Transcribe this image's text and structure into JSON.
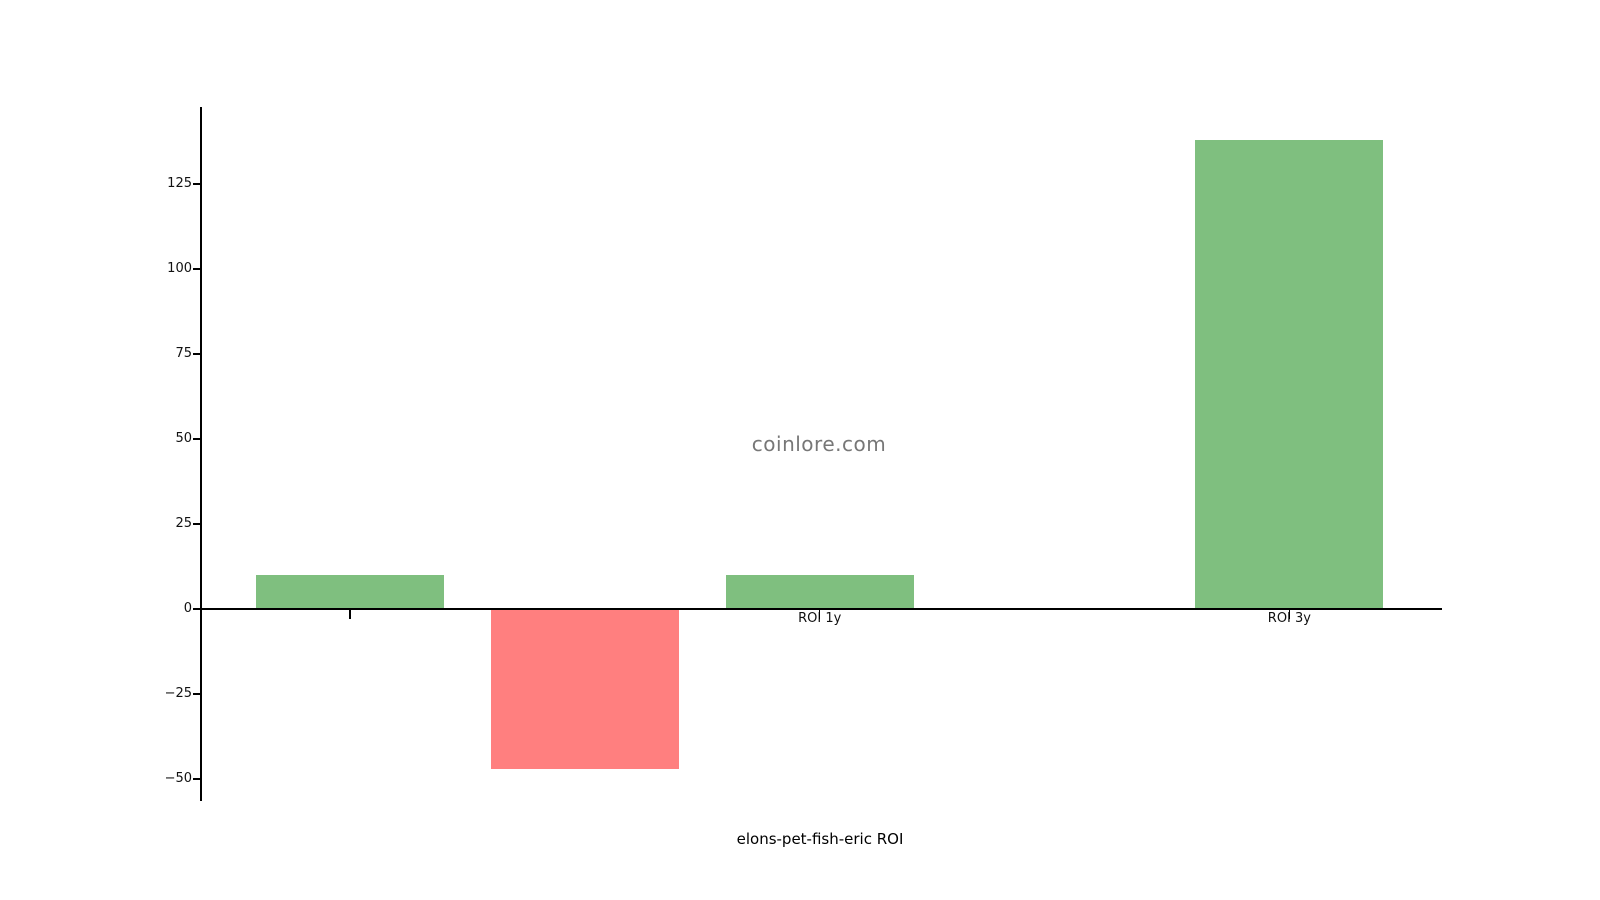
{
  "chart_data": {
    "type": "bar",
    "title": "",
    "xlabel": "elons-pet-fish-eric ROI",
    "ylabel": "",
    "watermark": "coinlore.com",
    "ylim": [
      -56,
      147
    ],
    "yticks": [
      125,
      100,
      75,
      50,
      25,
      0,
      -25,
      -50
    ],
    "categories": [
      "",
      "",
      "ROI 1y",
      "",
      "ROI 3y"
    ],
    "bars": [
      {
        "slot": 0,
        "label": "",
        "value": 10,
        "color": "#7fbf7f"
      },
      {
        "slot": 1,
        "label": "",
        "value": -47,
        "color": "#ff7f7f"
      },
      {
        "slot": 2,
        "label": "ROI 1y",
        "value": 10,
        "color": "#7fbf7f"
      },
      {
        "slot": 4,
        "label": "ROI 3y",
        "value": 138,
        "color": "#7fbf7f"
      }
    ],
    "x_ticks": [
      {
        "slot": 0,
        "label": ""
      },
      {
        "slot": 2,
        "label": "ROI 1y"
      },
      {
        "slot": 4,
        "label": "ROI 3y"
      }
    ],
    "grid": false,
    "legend_position": "none",
    "colors": {
      "positive": "#7fbf7f",
      "negative": "#ff7f7f",
      "watermark_text": "#777777",
      "axis": "#000000"
    }
  }
}
